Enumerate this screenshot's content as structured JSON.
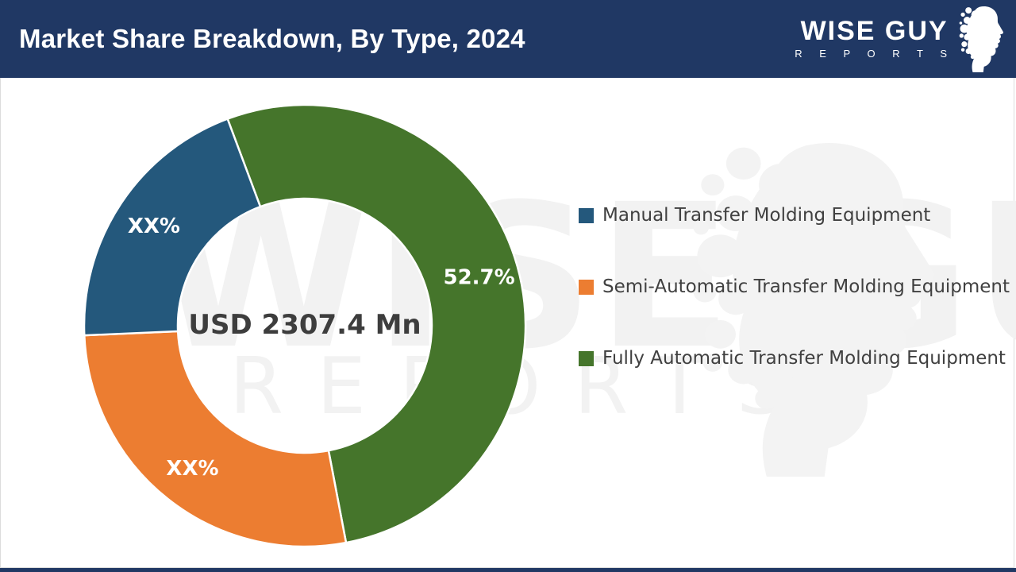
{
  "header": {
    "title": "Market Share Breakdown, By Type, 2024",
    "bg_color": "#203864",
    "logo": {
      "line1": "WISE GUY",
      "line2": "R E P O R T S"
    }
  },
  "chart_data": {
    "type": "pie",
    "donut": true,
    "title": "Market Share Breakdown, By Type, 2024",
    "center_label": "USD 2307.4 Mn",
    "direction": "counterclockwise",
    "start_angle_deg": 339.5,
    "legend_position": "right",
    "slices": [
      {
        "id": "manual",
        "name": "Manual Transfer Molding Equipment",
        "value": 20.0,
        "label": "XX%",
        "color": "#24587C"
      },
      {
        "id": "semi-automatic",
        "name": "Semi-Automatic Transfer Molding Equipment",
        "value": 27.3,
        "label": "XX%",
        "color": "#EC7D31"
      },
      {
        "id": "fully-automatic",
        "name": "Fully Automatic Transfer Molding Equipment",
        "value": 52.7,
        "label": "52.7%",
        "color": "#45752B"
      }
    ]
  },
  "watermark": {
    "line1": "WISE GUY",
    "line2": "REPORTS"
  }
}
